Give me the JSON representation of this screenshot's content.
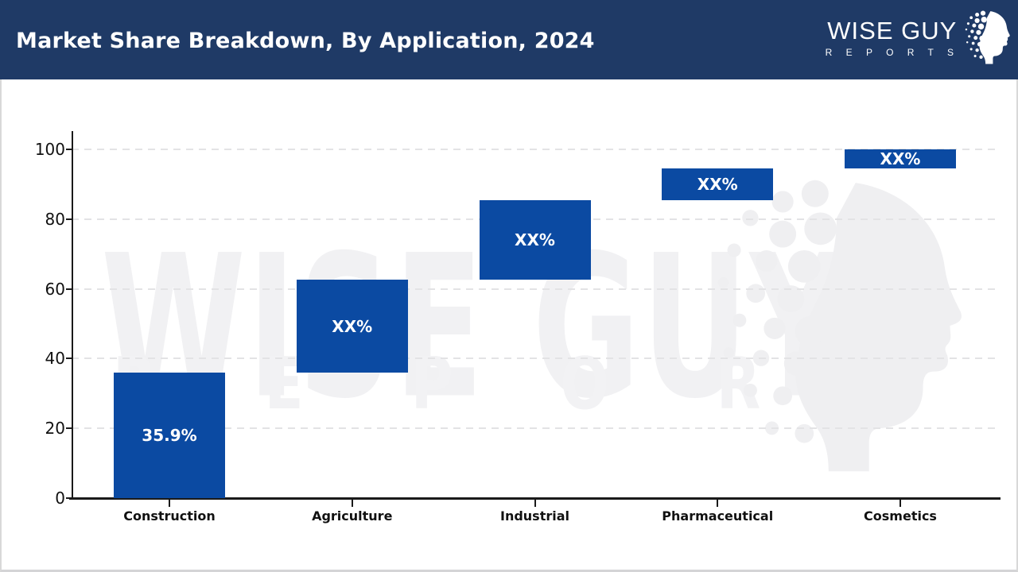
{
  "header": {
    "title": "Market Share Breakdown, By Application, 2024",
    "logo": {
      "brand": "WISE GUY",
      "sub": "R E P O R T S"
    }
  },
  "watermark": {
    "brand": "WISE GUY",
    "sub": "R E P O R T S"
  },
  "chart_data": {
    "type": "bar",
    "subtype": "floating-waterfall",
    "title": "Market Share Breakdown, By Application, 2024",
    "categories": [
      "Construction",
      "Agriculture",
      "Industrial",
      "Pharmaceutical",
      "Cosmetics"
    ],
    "segments": [
      {
        "category": "Construction",
        "start": 0,
        "end": 35.9,
        "label": "35.9%"
      },
      {
        "category": "Agriculture",
        "start": 35.9,
        "end": 62.7,
        "label": "XX%"
      },
      {
        "category": "Industrial",
        "start": 62.7,
        "end": 85.4,
        "label": "XX%"
      },
      {
        "category": "Pharmaceutical",
        "start": 85.4,
        "end": 94.5,
        "label": "XX%"
      },
      {
        "category": "Cosmetics",
        "start": 94.5,
        "end": 100,
        "label": "XX%"
      }
    ],
    "yticks": [
      0,
      20,
      40,
      60,
      80,
      100
    ],
    "ylim": [
      0,
      105
    ],
    "grid": "horizontal-dashed",
    "legend": "none",
    "bar_color": "#0b4aa2",
    "bar_label_color": "#ffffff",
    "header_color": "#1f3a66"
  }
}
